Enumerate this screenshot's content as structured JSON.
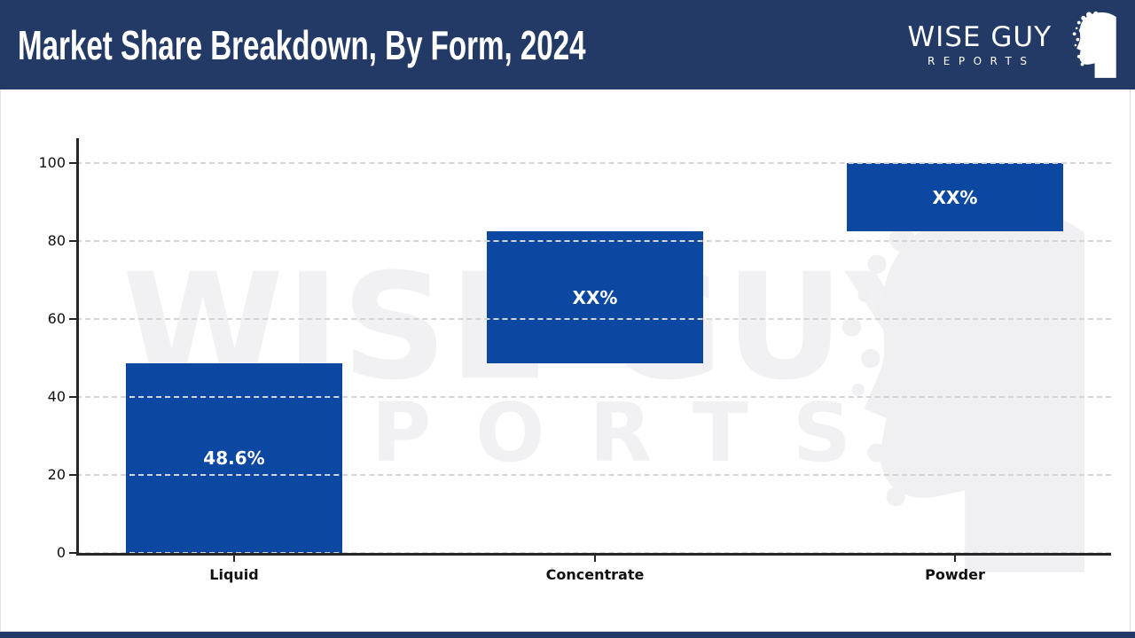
{
  "header": {
    "title": "Market Share Breakdown, By Form, 2024",
    "logo": {
      "brand": "WISE GUY",
      "sub": "REPORTS"
    }
  },
  "watermark": {
    "brand": "WISE GUY",
    "sub": "REPORTS"
  },
  "chart_data": {
    "type": "bar",
    "subtype": "floating-waterfall",
    "title": "Market Share Breakdown, By Form, 2024",
    "categories": [
      "Liquid",
      "Concentrate",
      "Powder"
    ],
    "segments": [
      {
        "category": "Liquid",
        "start": 0,
        "end": 48.6,
        "label": "48.6%"
      },
      {
        "category": "Concentrate",
        "start": 48.6,
        "end": 82.5,
        "label": "XX%"
      },
      {
        "category": "Powder",
        "start": 82.5,
        "end": 100,
        "label": "XX%"
      }
    ],
    "yticks": [
      0,
      20,
      40,
      60,
      80,
      100
    ],
    "ylim": [
      0,
      105
    ],
    "grid": "dashed-horizontal",
    "legend": "none",
    "xlabel": "",
    "ylabel": "",
    "bar_color": "#0c47a1",
    "bar_label_color": "#ffffff"
  },
  "colors": {
    "header_bg": "#233a66",
    "footer_bg": "#233a66",
    "grid": "#d5d5d5",
    "axis": "#262626",
    "watermark": "#f1f1f3"
  }
}
